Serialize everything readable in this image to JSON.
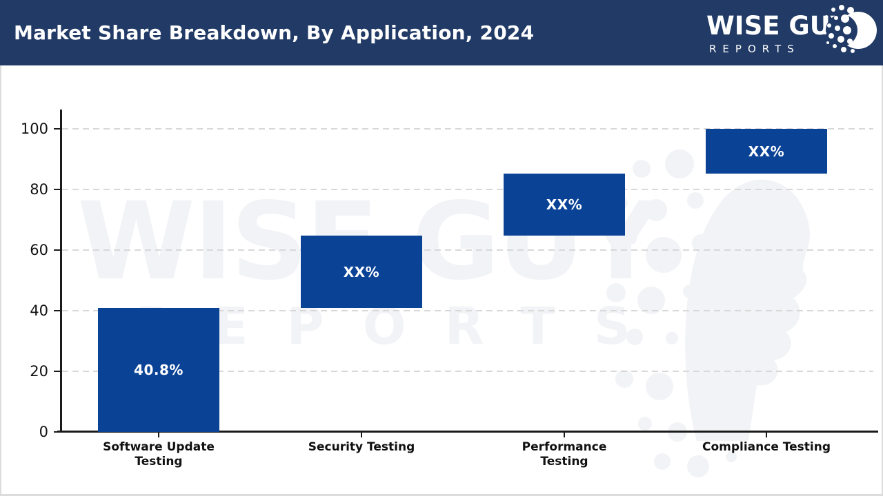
{
  "header": {
    "title": "Market Share Breakdown, By Application, 2024",
    "bg_color": "#213a66",
    "logo_line1": "WISE GUY",
    "logo_line2": "REPORTS"
  },
  "watermark": {
    "line1": "WISE GUY",
    "line2": "REPORTS"
  },
  "chart_data": {
    "type": "bar",
    "variant": "floating-waterfall",
    "title": "Market Share Breakdown, By Application, 2024",
    "categories": [
      "Software Update Testing",
      "Security Testing",
      "Performance Testing",
      "Compliance Testing"
    ],
    "category_lines": [
      [
        "Software Update",
        "Testing"
      ],
      [
        "Security Testing"
      ],
      [
        "Performance",
        "Testing"
      ],
      [
        "Compliance Testing"
      ]
    ],
    "segments": [
      {
        "category": "Software Update Testing",
        "from": 0,
        "to": 40.8,
        "label": "40.8%"
      },
      {
        "category": "Security Testing",
        "from": 40.8,
        "to": 64.8,
        "label": "XX%"
      },
      {
        "category": "Performance Testing",
        "from": 64.8,
        "to": 85.2,
        "label": "XX%"
      },
      {
        "category": "Compliance Testing",
        "from": 85.2,
        "to": 100,
        "label": "XX%"
      }
    ],
    "y_ticks": [
      0,
      20,
      40,
      60,
      80,
      100
    ],
    "ylim": [
      0,
      106
    ],
    "xlabel": "",
    "ylabel": "",
    "grid": "horizontal-dashed",
    "legend": "none",
    "bar_color": "#0a4296",
    "bar_label_color": "#ffffff",
    "axis_color": "#1a1a1a",
    "grid_color": "#d8d8d8"
  }
}
